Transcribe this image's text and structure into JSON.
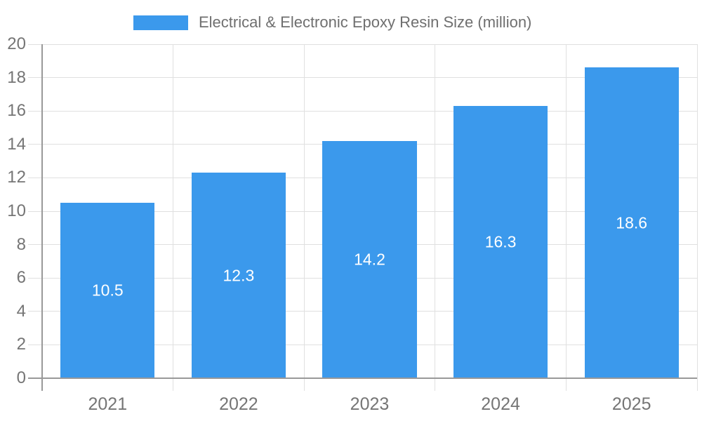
{
  "legend": {
    "label": "Electrical & Electronic Epoxy Resin Size (million)"
  },
  "chart_data": {
    "type": "bar",
    "title": "Electrical & Electronic Epoxy Resin Size (million)",
    "categories": [
      "2021",
      "2022",
      "2023",
      "2024",
      "2025"
    ],
    "series": [
      {
        "name": "Electrical & Electronic Epoxy Resin Size (million)",
        "values": [
          10.5,
          12.3,
          14.2,
          16.3,
          18.6
        ]
      }
    ],
    "bar_labels": [
      "10.5",
      "12.3",
      "14.2",
      "16.3",
      "18.6"
    ],
    "yticks": [
      0,
      2,
      4,
      6,
      8,
      10,
      12,
      14,
      16,
      18,
      20
    ],
    "ylim": [
      0,
      20
    ],
    "xlabel": "",
    "ylabel": "",
    "grid": "on",
    "legend_position": "top-center",
    "colors": {
      "bar": "#3b99ec",
      "grid": "#e0e0e0",
      "axis": "#999999",
      "tick_text": "#757575",
      "legend_text": "#6f6f6f",
      "value_label": "#ffffff",
      "background": "#ffffff"
    }
  }
}
